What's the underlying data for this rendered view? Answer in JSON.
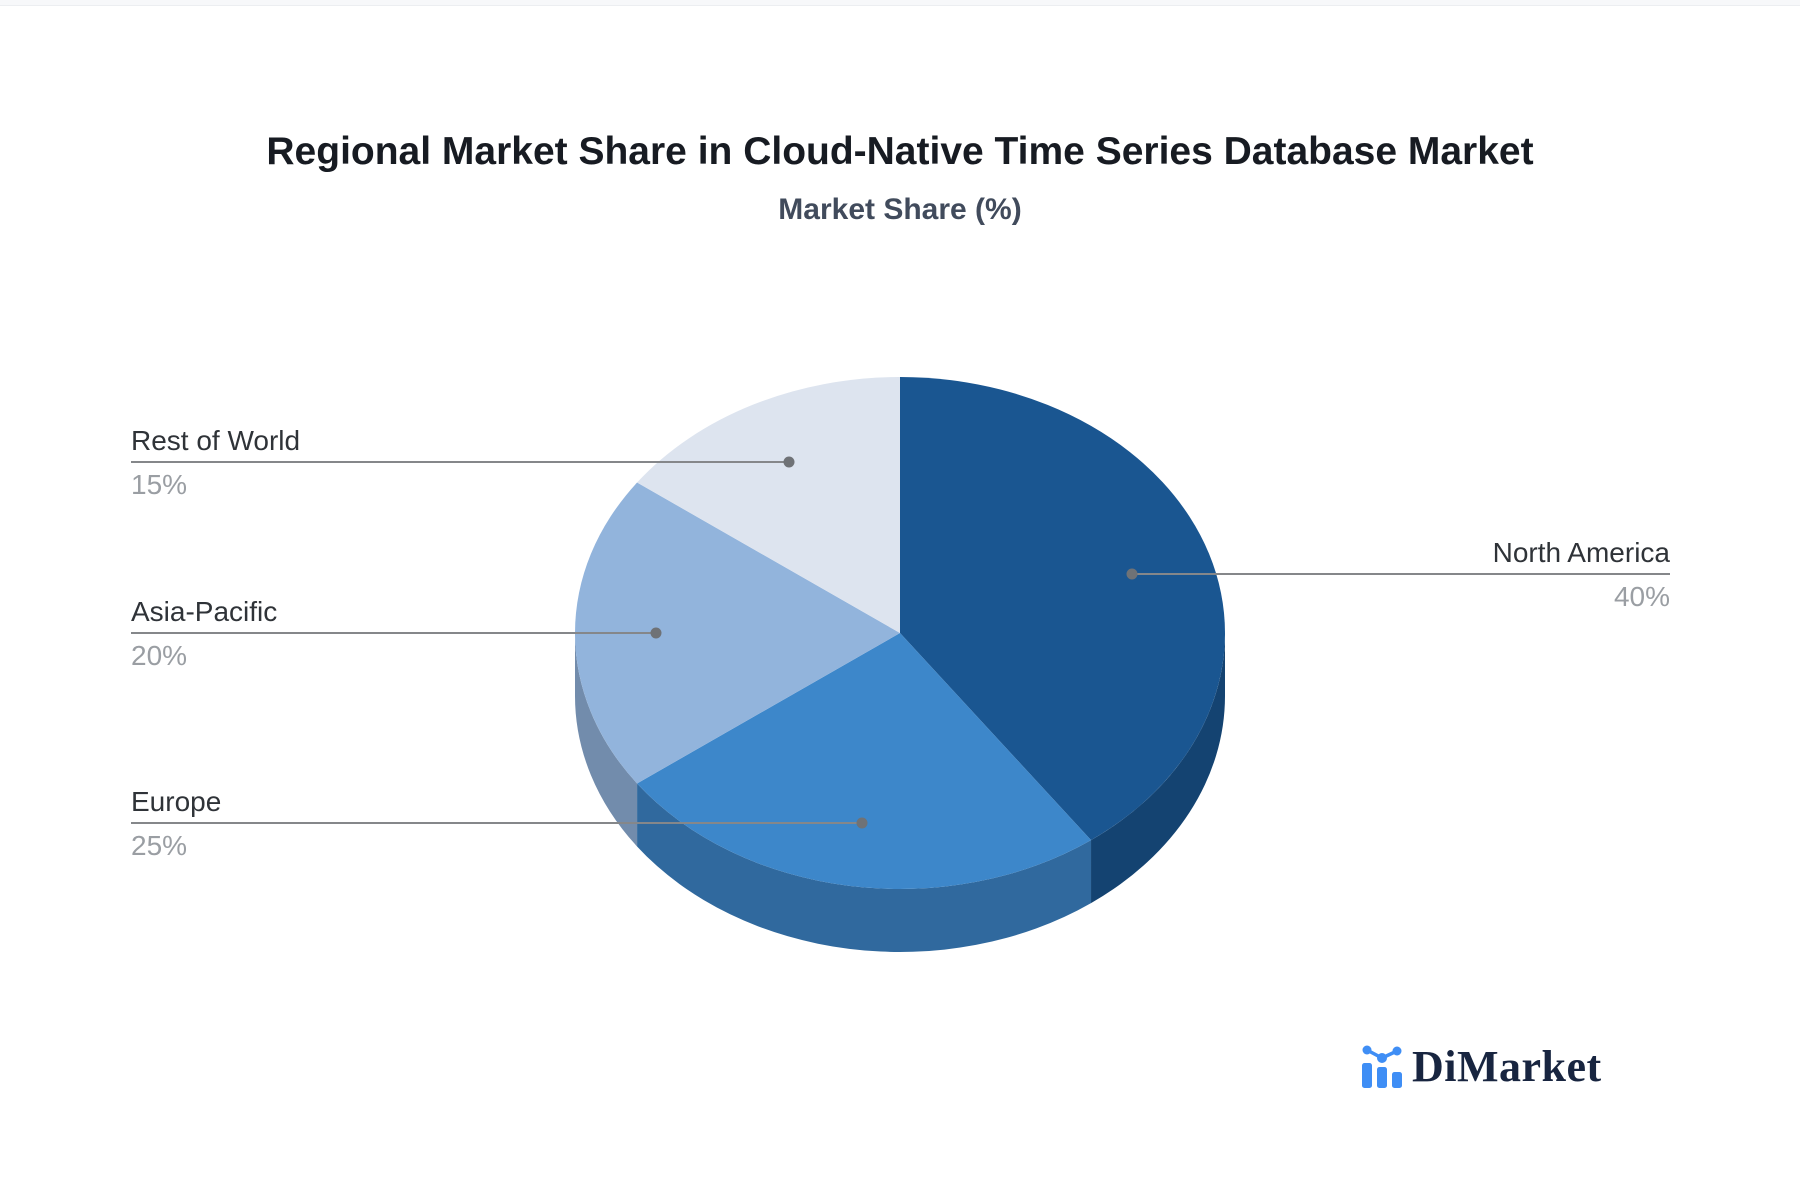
{
  "header": {
    "title": "Regional Market Share in Cloud-Native Time Series Database Market",
    "subtitle": "Market Share (%)"
  },
  "chart_data": {
    "type": "pie",
    "title": "Regional Market Share in Cloud-Native Time Series Database Market",
    "subtitle": "Market Share (%)",
    "unit": "%",
    "style": "3d",
    "start_angle": "top",
    "direction": "clockwise",
    "legend_position": "none",
    "slices": [
      {
        "label": "North America",
        "value": 40,
        "value_label": "40%",
        "color": "#1A5691"
      },
      {
        "label": "Europe",
        "value": 25,
        "value_label": "25%",
        "color": "#3D87CA"
      },
      {
        "label": "Asia-Pacific",
        "value": 20,
        "value_label": "20%",
        "color": "#92B4DC"
      },
      {
        "label": "Rest of World",
        "value": 15,
        "value_label": "15%",
        "color": "#DDE4EF"
      }
    ]
  },
  "branding": {
    "logo_text": "DiMarket",
    "logo_color": "#182540",
    "icon": "bar-chart-with-trend-dots",
    "icon_color": "#3F8EF5"
  },
  "colors": {
    "background": "#FFFFFF",
    "title": "#171B22",
    "subtitle": "#414B5C",
    "label_text": "#2F3338",
    "value_text": "#9A9EA3",
    "leader_line": "#85878A",
    "leader_dot": "#6F7276"
  }
}
